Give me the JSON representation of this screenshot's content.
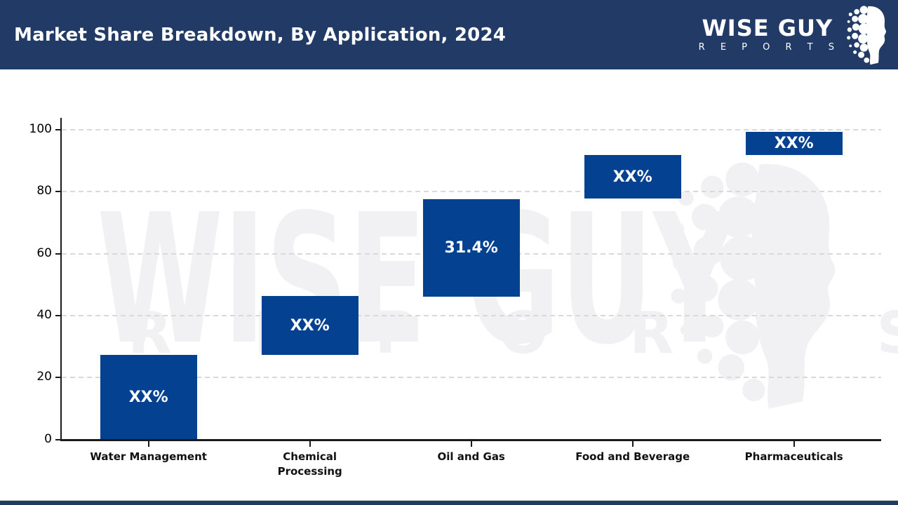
{
  "header": {
    "title": "Market Share Breakdown, By Application, 2024",
    "logo": {
      "brand_line1": "WISE GUY",
      "brand_line2": "R E P O R T S"
    }
  },
  "watermark": {
    "line1": "WISE GUY",
    "line2": "R E P O R T S"
  },
  "chart_data": {
    "type": "bar",
    "subtype": "floating-waterfall",
    "title": "Market Share Breakdown, By Application, 2024",
    "categories": [
      "Water Management",
      "Chemical Processing",
      "Oil and Gas",
      "Food and Beverage",
      "Pharmaceuticals"
    ],
    "tick_labels": [
      "Water Management",
      "Chemical\nProcessing",
      "Oil and Gas",
      "Food and Beverage",
      "Pharmaceuticals"
    ],
    "segments": [
      {
        "category": "Water Management",
        "start": 0,
        "end": 27.2,
        "label": "XX%"
      },
      {
        "category": "Chemical Processing",
        "start": 27.2,
        "end": 46.3,
        "label": "XX%"
      },
      {
        "category": "Oil and Gas",
        "start": 46.2,
        "end": 77.6,
        "label": "31.4%"
      },
      {
        "category": "Food and Beverage",
        "start": 77.7,
        "end": 91.8,
        "label": "XX%"
      },
      {
        "category": "Pharmaceuticals",
        "start": 91.8,
        "end": 99.4,
        "label": "XX%"
      }
    ],
    "xlabel": "",
    "ylabel": "",
    "ylim": [
      0,
      100
    ],
    "yticks": [
      0,
      20,
      40,
      60,
      80,
      100
    ],
    "grid": "horizontal dashed",
    "legend": "none",
    "bar_color": "#054191",
    "bar_label_color": "#ffffff",
    "axis_color": "#1a1a1a",
    "gridline_color": "#d9d9d9"
  },
  "colors": {
    "header_bg": "#213a66",
    "page_bg": "#ffffff",
    "watermark": "#f1f1f3"
  }
}
